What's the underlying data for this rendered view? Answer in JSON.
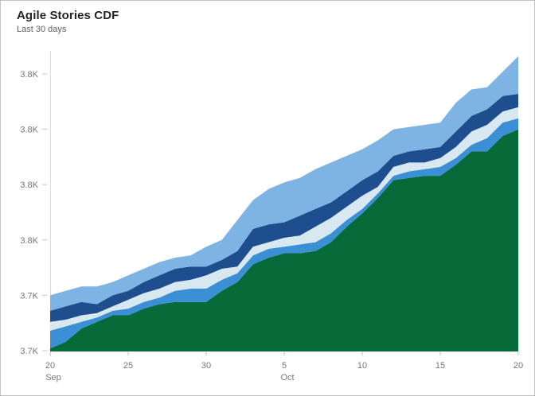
{
  "card": {
    "title": "Agile Stories CDF",
    "subtitle": "Last 30 days"
  },
  "style": {
    "title_color": "#252423",
    "subtitle_color": "#605e5c",
    "axis_line_color": "#dcdcdc",
    "tick_color": "#c9c9c9",
    "label_color": "#777777",
    "card_border_color": "#c2c2c2",
    "background": "#ffffff"
  },
  "chart_data": {
    "type": "area",
    "stacked": true,
    "title": "Agile Stories CDF",
    "subtitle": "Last 30 days",
    "legend": "none",
    "grid": "none",
    "ylim": [
      3700,
      3835
    ],
    "categories": [
      "Sep 20",
      "Sep 21",
      "Sep 22",
      "Sep 23",
      "Sep 24",
      "Sep 25",
      "Sep 26",
      "Sep 27",
      "Sep 28",
      "Sep 29",
      "Sep 30",
      "Oct 1",
      "Oct 2",
      "Oct 3",
      "Oct 4",
      "Oct 5",
      "Oct 6",
      "Oct 7",
      "Oct 8",
      "Oct 9",
      "Oct 10",
      "Oct 11",
      "Oct 12",
      "Oct 13",
      "Oct 14",
      "Oct 15",
      "Oct 16",
      "Oct 17",
      "Oct 18",
      "Oct 19",
      "Oct 20"
    ],
    "series": [
      {
        "name": "dark-green-bottom",
        "color": "#066b38",
        "values": [
          3701,
          3704,
          3710,
          3713,
          3716,
          3716,
          3719,
          3721,
          3722,
          3722,
          3722,
          3727,
          3731,
          3739,
          3742,
          3744,
          3744,
          3745,
          3749,
          3756,
          3762,
          3769,
          3777,
          3778,
          3779,
          3779,
          3784,
          3790,
          3790,
          3797,
          3800
        ]
      },
      {
        "name": "medium-blue",
        "color": "#3b8fd5",
        "values": [
          8,
          7,
          3,
          2,
          2,
          3,
          3,
          3,
          5,
          6,
          6,
          5,
          4,
          4,
          4,
          3,
          4,
          4,
          4,
          3,
          2,
          2,
          2,
          3,
          3,
          4,
          3,
          3,
          6,
          6,
          5
        ]
      },
      {
        "name": "pale-blue",
        "color": "#d8e8f0",
        "values": [
          4,
          3,
          3,
          2,
          2,
          4,
          4,
          4,
          4,
          4,
          6,
          5,
          3,
          4,
          3,
          4,
          4,
          7,
          7,
          6,
          6,
          3,
          4,
          4,
          3,
          4,
          5,
          6,
          6,
          5,
          5
        ]
      },
      {
        "name": "dark-navy",
        "color": "#1f4e8f",
        "values": [
          5,
          6,
          6,
          4,
          5,
          4,
          5,
          6,
          6,
          6,
          4,
          4,
          7,
          8,
          8,
          7,
          9,
          8,
          7,
          7,
          7,
          7,
          5,
          5,
          6,
          5,
          7,
          7,
          7,
          7,
          6
        ]
      },
      {
        "name": "light-blue-top",
        "color": "#7db4e3",
        "values": [
          7,
          7,
          7,
          8,
          6,
          7,
          6,
          6,
          5,
          5,
          9,
          9,
          14,
          13,
          16,
          18,
          17,
          18,
          18,
          16,
          14,
          14,
          12,
          11,
          11,
          11,
          13,
          12,
          10,
          11,
          17
        ]
      }
    ],
    "x_ticks": [
      {
        "index": 0,
        "label": "20",
        "month": "Sep"
      },
      {
        "index": 5,
        "label": "25",
        "month": ""
      },
      {
        "index": 10,
        "label": "30",
        "month": ""
      },
      {
        "index": 15,
        "label": "5",
        "month": "Oct"
      },
      {
        "index": 20,
        "label": "10",
        "month": ""
      },
      {
        "index": 25,
        "label": "15",
        "month": ""
      },
      {
        "index": 30,
        "label": "20",
        "month": ""
      }
    ],
    "y_ticks": [
      {
        "value": 3700,
        "label": "3.7K"
      },
      {
        "value": 3725,
        "label": "3.7K"
      },
      {
        "value": 3750,
        "label": "3.8K"
      },
      {
        "value": 3775,
        "label": "3.8K"
      },
      {
        "value": 3800,
        "label": "3.8K"
      },
      {
        "value": 3825,
        "label": "3.8K"
      }
    ]
  }
}
